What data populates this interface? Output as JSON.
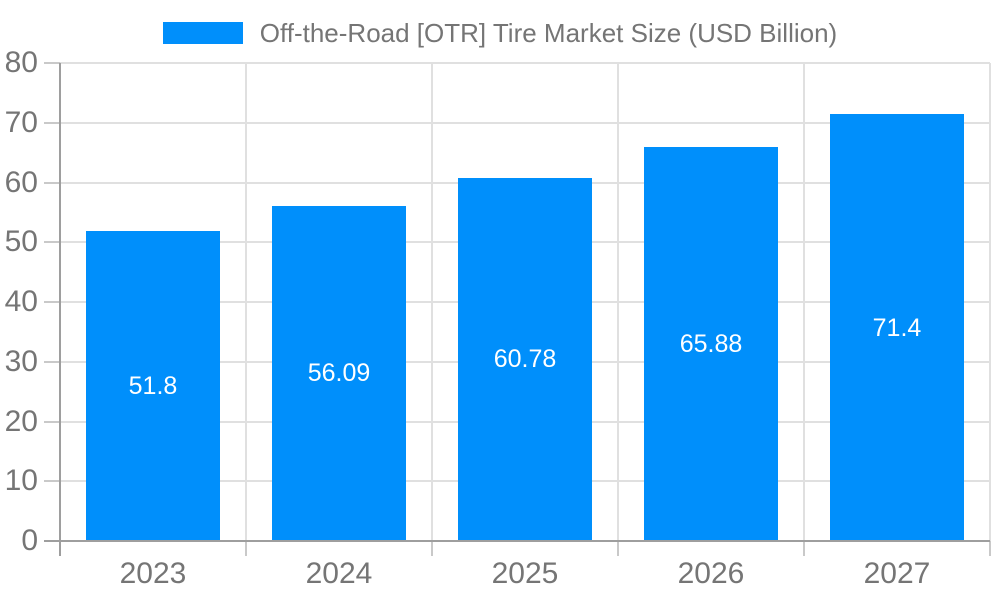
{
  "chart_data": {
    "type": "bar",
    "title": "Off-the-Road [OTR] Tire Market Size (USD Billion)",
    "categories": [
      "2023",
      "2024",
      "2025",
      "2026",
      "2027"
    ],
    "values": [
      51.8,
      56.09,
      60.78,
      65.88,
      71.4
    ],
    "value_labels": [
      "51.8",
      "56.09",
      "60.78",
      "65.88",
      "71.4"
    ],
    "xlabel": "",
    "ylabel": "",
    "ylim": [
      0,
      80
    ],
    "yticks": [
      0,
      10,
      20,
      30,
      40,
      50,
      60,
      70,
      80
    ],
    "grid": true,
    "legend_position": "top",
    "bar_color": "#008FFB",
    "value_label_color": "#ffffff",
    "grid_color": "#e0e0e0",
    "axis_color": "#9e9e9e",
    "text_color": "#757575"
  }
}
